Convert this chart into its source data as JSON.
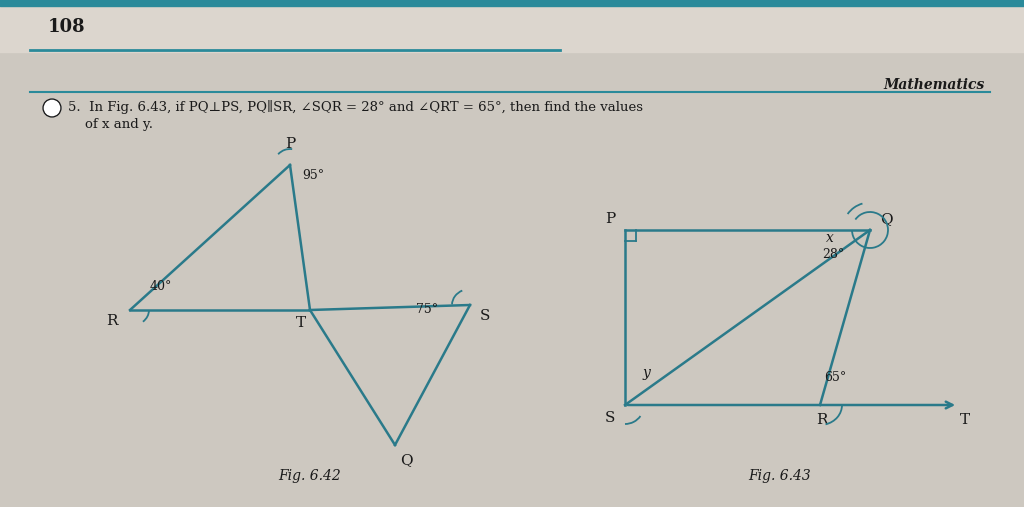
{
  "bg_color": "#cdc8c0",
  "page_color": "#d8d2ca",
  "line_color": "#2a7a8a",
  "text_color": "#1a1a1a",
  "page_number": "108",
  "header_text": "Mathematics",
  "fig1_label": "Fig. 6.42",
  "fig2_label": "Fig. 6.43",
  "question_line1": "5.  In Fig. 6.43, if PQ⊥PS, PQ∥SR, ∠SQR = 28° and ∠QRT = 65°, then find the values",
  "question_line2": "    of x and y.",
  "angle_P1": "95°",
  "angle_R1": "40°",
  "angle_S1": "75°",
  "angle_x": "x",
  "angle_28": "28°",
  "angle_y": "y",
  "angle_65": "65°"
}
